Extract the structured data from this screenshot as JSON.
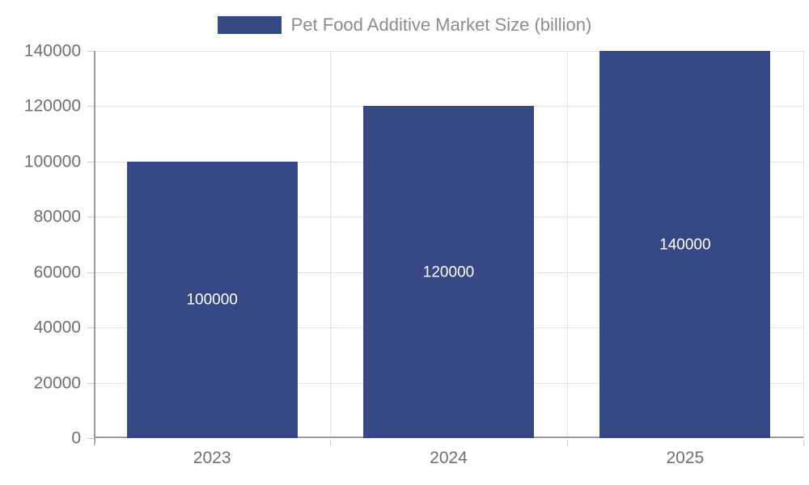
{
  "legend": {
    "label": "Pet Food Additive Market Size (billion)"
  },
  "chart_data": {
    "type": "bar",
    "title": "Pet Food Additive Market Size (billion)",
    "series_name": "Pet Food Additive Market Size (billion)",
    "categories": [
      "2023",
      "2024",
      "2025"
    ],
    "values": [
      100000,
      120000,
      140000
    ],
    "bar_labels": [
      "100000",
      "120000",
      "140000"
    ],
    "xlabel": "",
    "ylabel": "",
    "ylim": [
      0,
      140000
    ],
    "yticks": [
      0,
      20000,
      40000,
      60000,
      80000,
      100000,
      120000,
      140000
    ],
    "ytick_labels": [
      "0",
      "20000",
      "40000",
      "60000",
      "80000",
      "100000",
      "120000",
      "140000"
    ],
    "grid": true,
    "legend_position": "top",
    "colors": {
      "bar": "#374984",
      "grid": "#e0e0e0",
      "axis": "#999999",
      "tick": "#cccccc",
      "axis_label": "#6f6f6f",
      "legend_text": "#8c8c8c",
      "bar_label": "#ffffff",
      "background": "#ffffff"
    }
  }
}
